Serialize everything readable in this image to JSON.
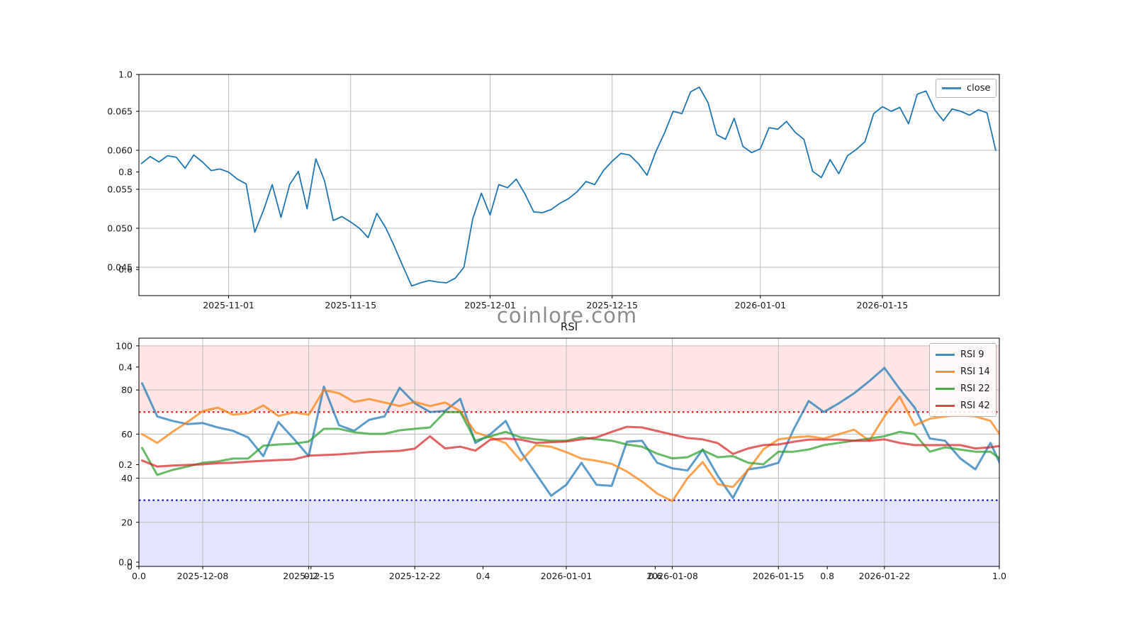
{
  "watermark": "coinlore.com",
  "colors": {
    "close": "#1f77b4",
    "rsi9": "#1f77b4",
    "rsi14": "#ff7f0e",
    "rsi22": "#2ca02c",
    "rsi42": "#d62728",
    "overbought_dotted_line": "#e60000",
    "oversold_dotted_line": "#0000cc",
    "overbought_band": "rgba(255,0,0,0.10)",
    "oversold_band": "rgba(0,0,255,0.10)",
    "grid": "#bdbdbd",
    "watermark_gray": "#8c8c8c"
  },
  "secondary_figure_axis": {
    "y_labels": [
      "1.0",
      "0.8",
      "0.6",
      "0.4",
      "0.2",
      "0.0"
    ],
    "x_labels": [
      "0.0",
      "0.2",
      "0.4",
      "0.6",
      "0.8",
      "1.0"
    ]
  },
  "chart_data": [
    {
      "type": "line",
      "name": "price",
      "title": "",
      "legend_position": "upper right",
      "grid": true,
      "x_tick_labels": [
        "2025-11-01",
        "2025-11-15",
        "2025-12-01",
        "2025-12-15",
        "2026-01-01",
        "2026-01-15"
      ],
      "y_ticks": [
        0.045,
        0.05,
        0.055,
        0.06,
        0.065
      ],
      "y_tick_labels": [
        "0.045",
        "0.050",
        "0.055",
        "0.060",
        "0.065"
      ],
      "ylim": [
        0.04136,
        0.06973
      ],
      "xlim": [
        "2025-10-21T17:00:00",
        "2026-01-28T10:00:00"
      ],
      "dates": [
        "2025-10-22",
        "2025-10-23",
        "2025-10-24",
        "2025-10-25",
        "2025-10-26",
        "2025-10-27",
        "2025-10-28",
        "2025-10-29",
        "2025-10-30",
        "2025-10-31",
        "2025-11-01",
        "2025-11-02",
        "2025-11-03",
        "2025-11-04",
        "2025-11-05",
        "2025-11-06",
        "2025-11-07",
        "2025-11-08",
        "2025-11-09",
        "2025-11-10",
        "2025-11-11",
        "2025-11-12",
        "2025-11-13",
        "2025-11-14",
        "2025-11-15",
        "2025-11-16",
        "2025-11-17",
        "2025-11-18",
        "2025-11-19",
        "2025-11-20",
        "2025-11-21",
        "2025-11-22",
        "2025-11-23",
        "2025-11-24",
        "2025-11-25",
        "2025-11-26",
        "2025-11-27",
        "2025-11-28",
        "2025-11-29",
        "2025-11-30",
        "2025-12-01",
        "2025-12-02",
        "2025-12-03",
        "2025-12-04",
        "2025-12-05",
        "2025-12-06",
        "2025-12-07",
        "2025-12-08",
        "2025-12-09",
        "2025-12-10",
        "2025-12-11",
        "2025-12-12",
        "2025-12-13",
        "2025-12-14",
        "2025-12-15",
        "2025-12-16",
        "2025-12-17",
        "2025-12-18",
        "2025-12-19",
        "2025-12-20",
        "2025-12-21",
        "2025-12-22",
        "2025-12-23",
        "2025-12-24",
        "2025-12-25",
        "2025-12-26",
        "2025-12-27",
        "2025-12-28",
        "2025-12-29",
        "2025-12-30",
        "2025-12-31",
        "2026-01-01",
        "2026-01-02",
        "2026-01-03",
        "2026-01-04",
        "2026-01-05",
        "2026-01-06",
        "2026-01-07",
        "2026-01-08",
        "2026-01-09",
        "2026-01-10",
        "2026-01-11",
        "2026-01-12",
        "2026-01-13",
        "2026-01-14",
        "2026-01-15",
        "2026-01-16",
        "2026-01-17",
        "2026-01-18",
        "2026-01-19",
        "2026-01-20",
        "2026-01-21",
        "2026-01-22",
        "2026-01-23",
        "2026-01-24",
        "2026-01-25",
        "2026-01-26",
        "2026-01-27",
        "2026-01-28"
      ],
      "series": [
        {
          "name": "close",
          "color": "#1f77b4",
          "values": [
            0.0583,
            0.0592,
            0.0585,
            0.0593,
            0.0591,
            0.0577,
            0.0594,
            0.0585,
            0.0574,
            0.0576,
            0.0572,
            0.0563,
            0.0557,
            0.0495,
            0.0523,
            0.0556,
            0.0514,
            0.0556,
            0.0573,
            0.0525,
            0.0589,
            0.0561,
            0.051,
            0.0515,
            0.0508,
            0.05,
            0.0488,
            0.0519,
            0.0501,
            0.0477,
            0.0451,
            0.0426,
            0.043,
            0.0433,
            0.0431,
            0.043,
            0.0436,
            0.045,
            0.0512,
            0.0545,
            0.0517,
            0.0556,
            0.0552,
            0.0563,
            0.0544,
            0.0521,
            0.052,
            0.0524,
            0.0532,
            0.0538,
            0.0547,
            0.056,
            0.0556,
            0.0574,
            0.0586,
            0.0596,
            0.0594,
            0.0583,
            0.0568,
            0.0598,
            0.0622,
            0.065,
            0.0647,
            0.0675,
            0.0681,
            0.0661,
            0.062,
            0.0614,
            0.0641,
            0.0605,
            0.0597,
            0.0602,
            0.0629,
            0.0627,
            0.0637,
            0.0623,
            0.0614,
            0.0573,
            0.0565,
            0.0588,
            0.057,
            0.0593,
            0.0601,
            0.0611,
            0.0647,
            0.0656,
            0.065,
            0.0655,
            0.0634,
            0.0672,
            0.0676,
            0.0652,
            0.0638,
            0.0653,
            0.065,
            0.0645,
            0.0652,
            0.0648,
            0.06
          ]
        }
      ]
    },
    {
      "type": "line",
      "name": "rsi",
      "title": "RSI",
      "legend_position": "upper right",
      "grid": true,
      "x_tick_labels": [
        "2025-12-08",
        "2025-12-15",
        "2025-12-22",
        "2026-01-01",
        "2026-01-08",
        "2026-01-15",
        "2026-01-22"
      ],
      "y_ticks": [
        0,
        20,
        40,
        60,
        80,
        100
      ],
      "y_tick_labels": [
        "0",
        "20",
        "40",
        "60",
        "80",
        "100"
      ],
      "ylim": [
        0,
        103.5
      ],
      "xlim": [
        "2025-12-03T19:00:00",
        "2026-01-29T14:00:00"
      ],
      "overbought_level": 70,
      "oversold_level": 30,
      "bands": [
        {
          "name": "overbought-band",
          "from": 70,
          "to": 100,
          "color": "rgba(255,0,0,0.10)"
        },
        {
          "name": "oversold-band",
          "from": 0,
          "to": 30,
          "color": "rgba(0,0,255,0.10)"
        }
      ],
      "ref_lines": [
        {
          "name": "overbought-line",
          "y": 70,
          "color": "#e60000"
        },
        {
          "name": "oversold-line",
          "y": 30,
          "color": "#0000cc"
        }
      ],
      "dates": [
        "2025-12-04",
        "2025-12-05",
        "2025-12-06",
        "2025-12-07",
        "2025-12-08",
        "2025-12-09",
        "2025-12-10",
        "2025-12-11",
        "2025-12-12",
        "2025-12-13",
        "2025-12-14",
        "2025-12-15",
        "2025-12-16",
        "2025-12-17",
        "2025-12-18",
        "2025-12-19",
        "2025-12-20",
        "2025-12-21",
        "2025-12-22",
        "2025-12-23",
        "2025-12-24",
        "2025-12-25",
        "2025-12-26",
        "2025-12-27",
        "2025-12-28",
        "2025-12-29",
        "2025-12-30",
        "2025-12-31",
        "2026-01-01",
        "2026-01-02",
        "2026-01-03",
        "2026-01-04",
        "2026-01-05",
        "2026-01-06",
        "2026-01-07",
        "2026-01-08",
        "2026-01-09",
        "2026-01-10",
        "2026-01-11",
        "2026-01-12",
        "2026-01-13",
        "2026-01-14",
        "2026-01-15",
        "2026-01-16",
        "2026-01-17",
        "2026-01-18",
        "2026-01-19",
        "2026-01-20",
        "2026-01-21",
        "2026-01-22",
        "2026-01-23",
        "2026-01-24",
        "2026-01-25",
        "2026-01-26",
        "2026-01-27",
        "2026-01-28",
        "2026-01-29",
        "2026-01-30"
      ],
      "series": [
        {
          "name": "RSI 9",
          "color": "#1f77b4",
          "values": [
            83,
            68,
            66,
            64.5,
            65,
            63,
            61.5,
            58.5,
            50,
            65.5,
            58,
            50,
            81.5,
            64,
            61.5,
            66.5,
            68,
            81,
            74,
            70,
            70.5,
            76,
            56,
            60,
            66,
            52,
            42,
            32,
            37,
            47,
            37,
            36.5,
            56.5,
            57,
            47,
            44.5,
            43.5,
            53,
            41,
            31,
            44,
            45,
            47,
            62,
            75,
            70,
            74,
            78.5,
            84,
            90,
            80.5,
            72,
            58,
            57,
            49,
            44,
            56,
            41
          ]
        },
        {
          "name": "RSI 14",
          "color": "#ff7f0e",
          "values": [
            60,
            56,
            61,
            65.5,
            70.4,
            72,
            68.8,
            69.5,
            73,
            68.2,
            69.8,
            68.8,
            80,
            78.5,
            74.6,
            75.9,
            74.3,
            72.7,
            74.6,
            72.7,
            74.3,
            70.4,
            60.8,
            58.5,
            55.9,
            47.9,
            55,
            54.3,
            51.8,
            48.9,
            47.9,
            46.5,
            43,
            38.5,
            33,
            29.6,
            40,
            47.3,
            37.3,
            36,
            43.7,
            53,
            57.6,
            58.5,
            59,
            58,
            60,
            62,
            57,
            68,
            77,
            64,
            67,
            68,
            68.5,
            68,
            66,
            56
          ]
        },
        {
          "name": "RSI 22",
          "color": "#2ca02c",
          "values": [
            53.7,
            41.5,
            43.7,
            45.3,
            47,
            47.6,
            48.9,
            48.9,
            54.7,
            55.3,
            55.6,
            56.6,
            62.4,
            62.4,
            60.8,
            60.1,
            60.1,
            61.7,
            62.4,
            63,
            70,
            70,
            57,
            59,
            61,
            58.5,
            57.6,
            57,
            57,
            58.5,
            57.6,
            57,
            55.3,
            54.3,
            51.1,
            49,
            49.5,
            52.7,
            49.5,
            50,
            47,
            46.3,
            52,
            52,
            53,
            55,
            56,
            57,
            58,
            59,
            61,
            60,
            52,
            54,
            53,
            52,
            52,
            47
          ]
        },
        {
          "name": "RSI 42",
          "color": "#d62728",
          "values": [
            48,
            45.3,
            45.7,
            46,
            46.3,
            46.8,
            47,
            47.5,
            47.9,
            48.2,
            48.5,
            50.2,
            50.5,
            50.8,
            51.3,
            51.8,
            52.1,
            52.4,
            53.4,
            59,
            53.5,
            54.3,
            52.5,
            57.5,
            58,
            57.5,
            56,
            56.3,
            56.6,
            57.6,
            58.5,
            61,
            63.3,
            63,
            61.4,
            59.8,
            58.2,
            57.6,
            55.9,
            51,
            53.5,
            55,
            55.3,
            56.5,
            57.5,
            57.5,
            57.5,
            57,
            57,
            57.6,
            56,
            55,
            55,
            55,
            55,
            53.5,
            54,
            55
          ]
        }
      ]
    }
  ]
}
